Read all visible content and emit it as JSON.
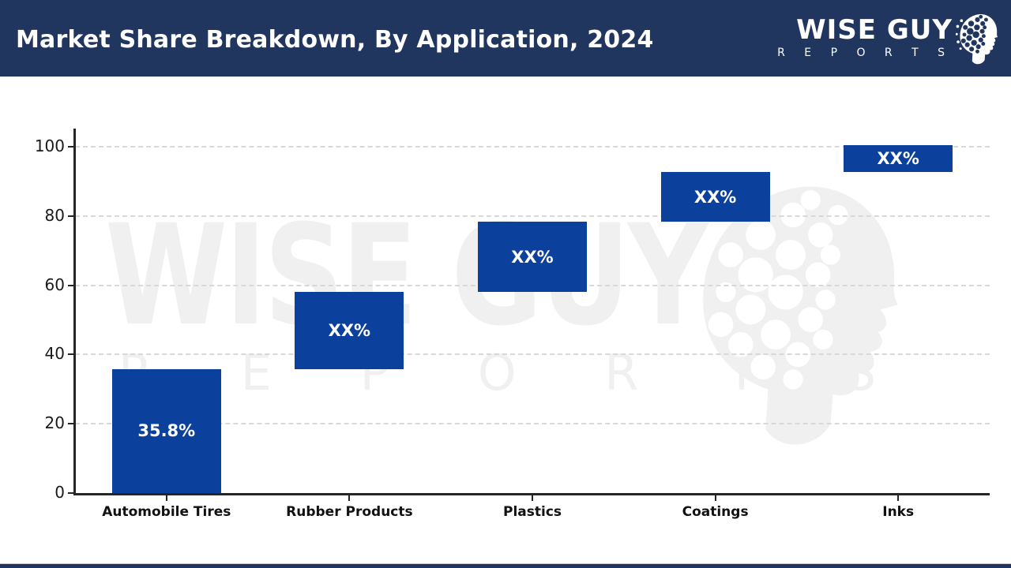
{
  "header": {
    "title": "Market Share Breakdown, By Application, 2024",
    "logo": {
      "name": "WISE GUY",
      "tagline": "R E P O R T S"
    }
  },
  "watermark": {
    "line1": "WISE GUY",
    "line2": "R E P O R T S"
  },
  "colors": {
    "header_bg": "#21365f",
    "bar": "#0b419c",
    "bar_label": "#ffffff",
    "grid": "#d8d8d8",
    "axis": "#262626",
    "watermark": "#f0f0f0"
  },
  "chart_data": {
    "type": "bar",
    "subtype": "waterfall",
    "title": "Market Share Breakdown, By Application, 2024",
    "xlabel": "",
    "ylabel": "",
    "categories": [
      "Automobile Tires",
      "Rubber Products",
      "Plastics",
      "Coatings",
      "Inks"
    ],
    "segments": [
      {
        "category": "Automobile Tires",
        "start": 0,
        "end": 35.8,
        "label": "35.8%"
      },
      {
        "category": "Rubber Products",
        "start": 35.8,
        "end": 58.0,
        "label": "XX%"
      },
      {
        "category": "Plastics",
        "start": 58.0,
        "end": 78.3,
        "label": "XX%"
      },
      {
        "category": "Coatings",
        "start": 78.3,
        "end": 92.7,
        "label": "XX%"
      },
      {
        "category": "Inks",
        "start": 92.7,
        "end": 100.4,
        "label": "XX%"
      }
    ],
    "yticks": [
      0,
      20,
      40,
      60,
      80,
      100
    ],
    "ylim": [
      0,
      105
    ],
    "grid": "horizontal-dashed",
    "legend": "none"
  }
}
